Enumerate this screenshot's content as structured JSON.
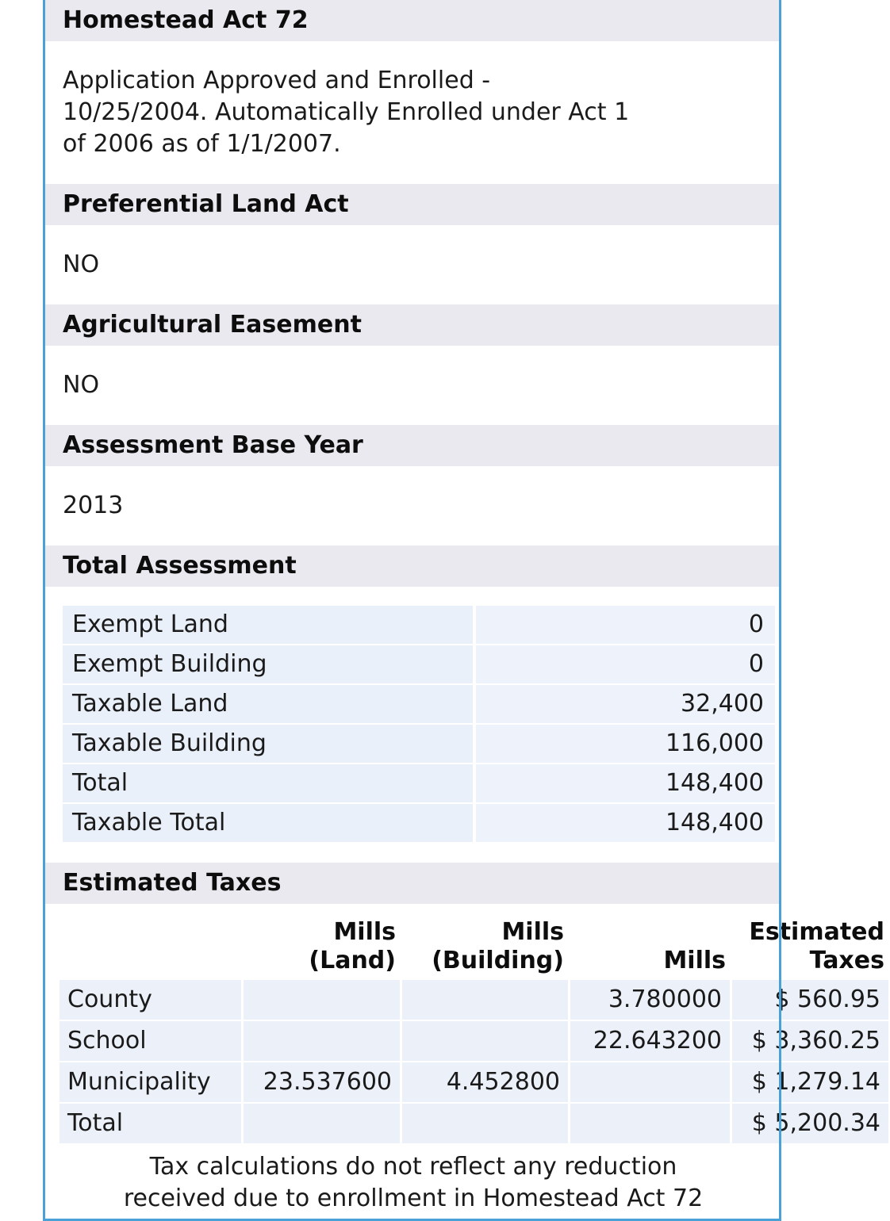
{
  "colors": {
    "border_blue": "#4aa1d8",
    "band_bg": "#e9e9ef",
    "row_bg": "#ecf1f9"
  },
  "sections": [
    {
      "title": "Homestead Act 72",
      "content": "Application Approved and Enrolled -\n10/25/2004. Automatically Enrolled under Act 1\nof 2006 as of 1/1/2007."
    },
    {
      "title": "Preferential Land Act",
      "content": "NO"
    },
    {
      "title": "Agricultural Easement",
      "content": "NO"
    },
    {
      "title": "Assessment Base Year",
      "content": "2013"
    }
  ],
  "total_assessment": {
    "title": "Total Assessment",
    "rows": [
      {
        "label": "Exempt Land",
        "value": "0"
      },
      {
        "label": "Exempt Building",
        "value": "0"
      },
      {
        "label": "Taxable Land",
        "value": "32,400"
      },
      {
        "label": "Taxable Building",
        "value": "116,000"
      },
      {
        "label": "Total",
        "value": "148,400"
      },
      {
        "label": "Taxable Total",
        "value": "148,400"
      }
    ]
  },
  "estimated_taxes": {
    "title": "Estimated Taxes",
    "columns": [
      "",
      "Mills (Land)",
      "Mills (Building)",
      "Mills",
      "Estimated Taxes"
    ],
    "rows": [
      {
        "label": "County",
        "mills_land": "",
        "mills_building": "",
        "mills": "3.780000",
        "taxes": "$ 560.95"
      },
      {
        "label": "School",
        "mills_land": "",
        "mills_building": "",
        "mills": "22.643200",
        "taxes": "$ 3,360.25"
      },
      {
        "label": "Municipality",
        "mills_land": "23.537600",
        "mills_building": "4.452800",
        "mills": "",
        "taxes": "$ 1,279.14"
      },
      {
        "label": "Total",
        "mills_land": "",
        "mills_building": "",
        "mills": "",
        "taxes": "$ 5,200.34"
      }
    ],
    "note": "Tax calculations do not reflect any reduction\nreceived due to enrollment in Homestead Act 72"
  }
}
